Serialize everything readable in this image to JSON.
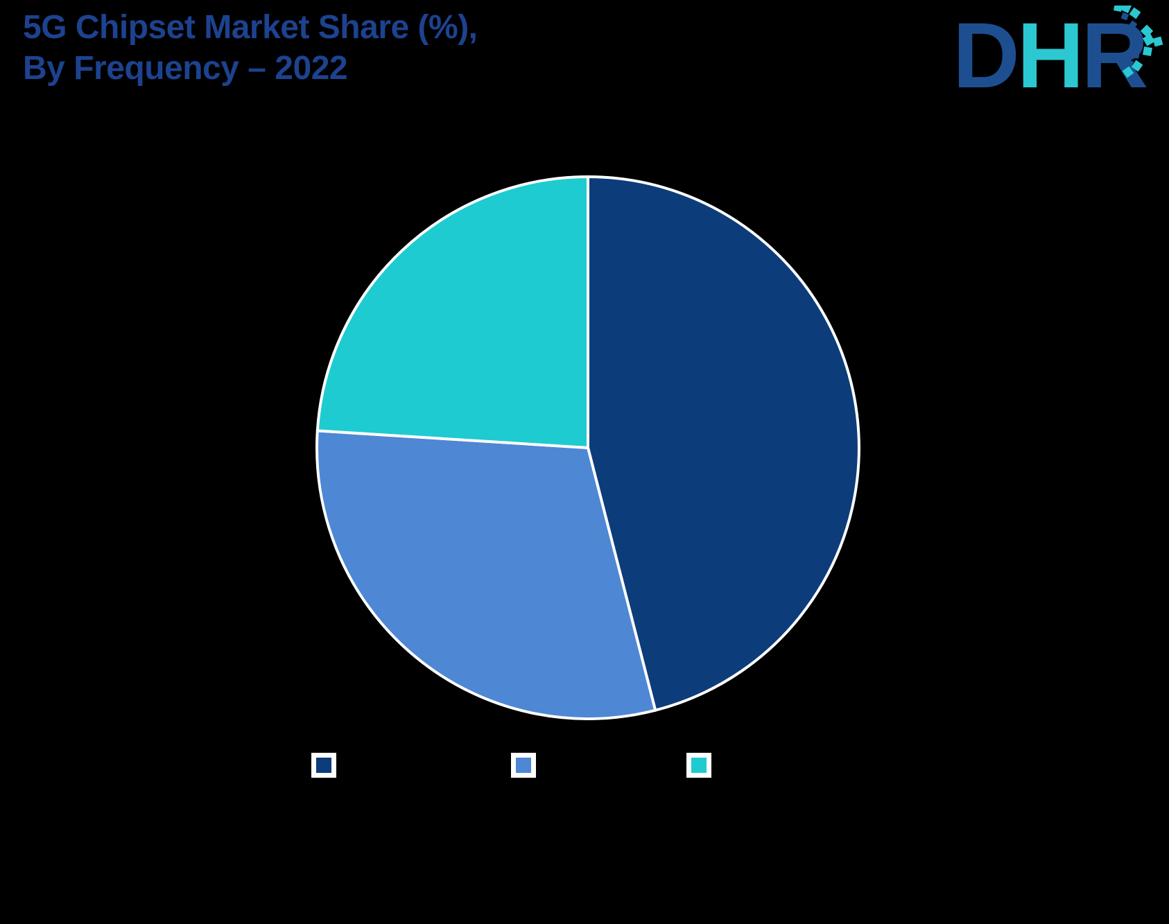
{
  "header": {
    "title_line1": "5G Chipset Market Share (%),",
    "title_line2": "By Frequency – 2022",
    "title_color": "#1d428f"
  },
  "logo": {
    "name": "DHR",
    "letters": [
      {
        "text": "D",
        "color": "#1d4f90"
      },
      {
        "text": "H",
        "color": "#2bc8d2"
      },
      {
        "text": "R",
        "color": "#1d4f90"
      }
    ],
    "accent_blue": "#1d4f90",
    "accent_teal": "#2bc8d2"
  },
  "chart_data": {
    "type": "pie",
    "title": "5G Chipset Market Share (%), By Frequency – 2022",
    "slices": [
      {
        "label": "",
        "value": 46,
        "color": "#0d3c7a"
      },
      {
        "label": "",
        "value": 30,
        "color": "#4e87d4"
      },
      {
        "label": "",
        "value": 24,
        "color": "#1ecbd0"
      }
    ],
    "start_angle_deg": 0,
    "direction": "clockwise",
    "slice_border_color": "#ffffff",
    "slice_border_width": 4,
    "legend_position": "bottom",
    "legend_labels_visible": false,
    "background": "#000000"
  },
  "legend": {
    "items": [
      {
        "label": "",
        "color": "#0d3c7a"
      },
      {
        "label": "",
        "color": "#4e87d4"
      },
      {
        "label": "",
        "color": "#1ecbd0"
      }
    ]
  }
}
